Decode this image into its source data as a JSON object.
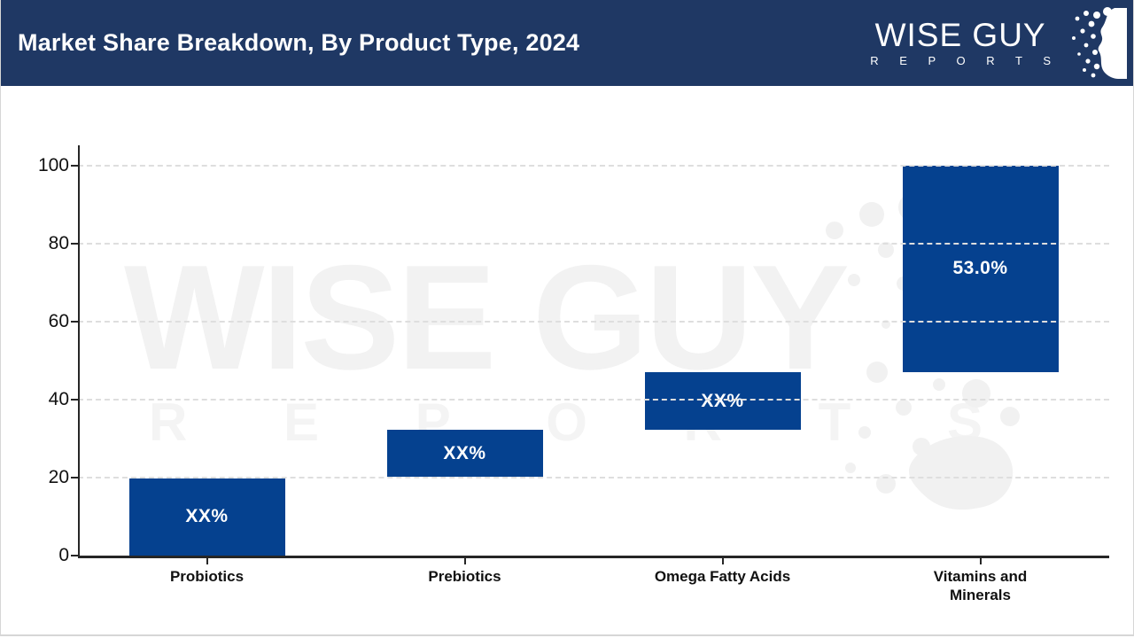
{
  "header": {
    "title": "Market Share Breakdown, By Product Type, 2024",
    "background_color": "#1f3864",
    "logo": {
      "line1": "WISE GUY",
      "line2": "R E P O R T S"
    }
  },
  "watermark": {
    "line1": "WISE GUY",
    "line2": "R E P O R T S"
  },
  "chart_data": {
    "type": "bar",
    "variant": "floating-segment-bars",
    "title": "Market Share Breakdown, By Product Type, 2024",
    "categories": [
      "Probiotics",
      "Prebiotics",
      "Omega Fatty Acids",
      "Vitamins and Minerals"
    ],
    "x_tick_labels": [
      "Probiotics",
      "Prebiotics",
      "Omega Fatty Acids",
      "Vitamins and\nMinerals"
    ],
    "series": [
      {
        "name": "Market share (%)",
        "segments": [
          {
            "category": "Probiotics",
            "start": 0,
            "end": 19.8,
            "label": "XX%"
          },
          {
            "category": "Prebiotics",
            "start": 20.1,
            "end": 32.2,
            "label": "XX%"
          },
          {
            "category": "Omega Fatty Acids",
            "start": 32.2,
            "end": 46.9,
            "label": "XX%"
          },
          {
            "category": "Vitamins and Minerals",
            "start": 47.0,
            "end": 100.0,
            "label": "53.0%"
          }
        ]
      }
    ],
    "y_ticks": [
      0,
      20,
      40,
      60,
      80,
      100
    ],
    "ylim": [
      0,
      105
    ],
    "xlabel": "",
    "ylabel": "",
    "grid": "horizontal-dashed",
    "legend": "none",
    "bar_color": "#05418f",
    "bar_label_color": "#ffffff",
    "axis_color": "#262626"
  }
}
